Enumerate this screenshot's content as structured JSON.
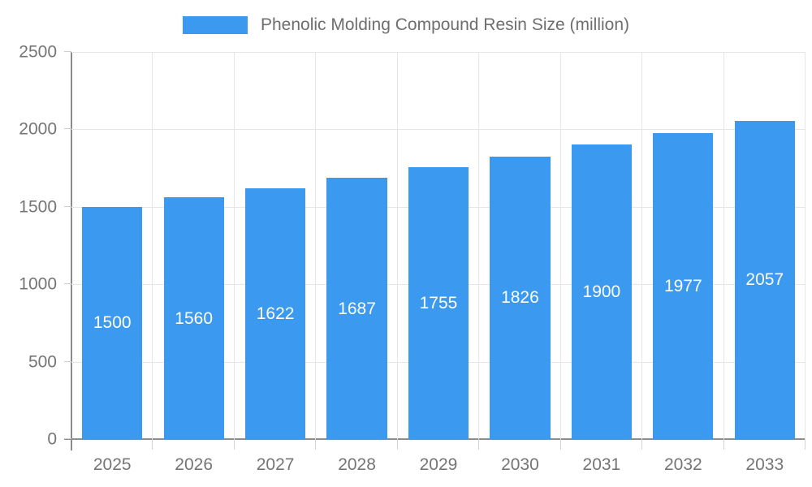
{
  "legend": {
    "label": "Phenolic Molding Compound Resin Size (million)"
  },
  "chart_data": {
    "type": "bar",
    "title": "Phenolic Molding Compound Resin Size (million)",
    "series_name": "Phenolic Molding Compound Resin Size (million)",
    "categories": [
      "2025",
      "2026",
      "2027",
      "2028",
      "2029",
      "2030",
      "2031",
      "2032",
      "2033"
    ],
    "values": [
      1500,
      1560,
      1622,
      1687,
      1755,
      1826,
      1900,
      1977,
      2057
    ],
    "bar_value_labels": [
      "1500",
      "1560",
      "1622",
      "1687",
      "1755",
      "1826",
      "1900",
      "1977",
      "2057"
    ],
    "xlabel": "",
    "ylabel": "",
    "ylim": [
      0,
      2500
    ],
    "yticks": [
      0,
      500,
      1000,
      1500,
      2000,
      2500
    ],
    "grid": true,
    "legend_position": "top",
    "colors": {
      "bar": "#3B99F0",
      "bar_label_text": "#ffffff",
      "axis_label_text": "#757575",
      "legend_text": "#6e6e6e"
    }
  }
}
